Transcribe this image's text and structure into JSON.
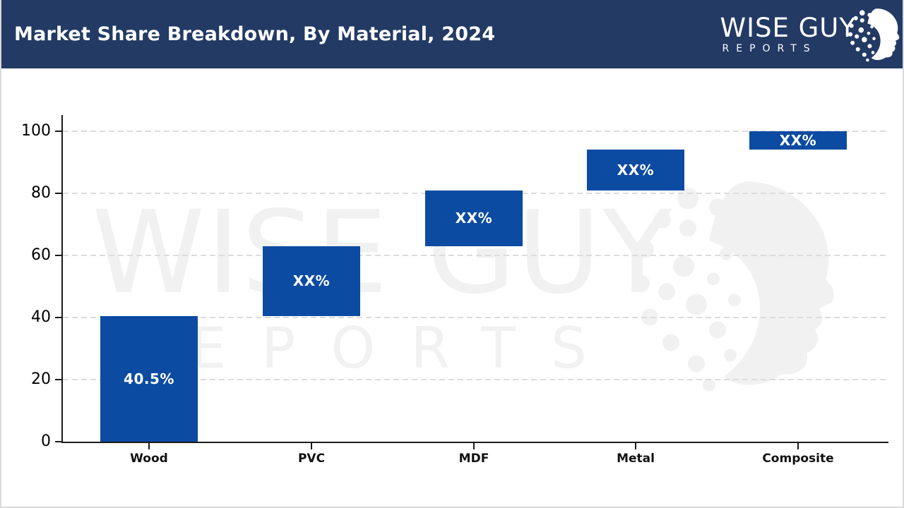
{
  "header": {
    "title": "Market Share Breakdown, By Material, 2024"
  },
  "brand": {
    "name": "WISE GUY",
    "subtitle": "REPORTS"
  },
  "colors": {
    "header_bg": "#223a64",
    "bar": "#0c4ba2",
    "bar_label": "#ffffff",
    "gridline": "#dcdcdc",
    "axis": "#1a1a1a",
    "watermark": "#f1f1f1"
  },
  "chart_data": {
    "type": "bar",
    "subtype": "waterfall",
    "title": "Market Share Breakdown, By Material, 2024",
    "xlabel": "",
    "ylabel": "",
    "categories": [
      "Wood",
      "PVC",
      "MDF",
      "Metal",
      "Composite"
    ],
    "segments": [
      {
        "category": "Wood",
        "start": 0,
        "end": 40.5,
        "label": "40.5%"
      },
      {
        "category": "PVC",
        "start": 40.5,
        "end": 63,
        "label": "XX%"
      },
      {
        "category": "MDF",
        "start": 63,
        "end": 81,
        "label": "XX%"
      },
      {
        "category": "Metal",
        "start": 81,
        "end": 94,
        "label": "XX%"
      },
      {
        "category": "Composite",
        "start": 94,
        "end": 100,
        "label": "XX%"
      }
    ],
    "ylim": [
      0,
      100
    ],
    "yticks": [
      0,
      20,
      40,
      60,
      80,
      100
    ],
    "grid": "horizontal-dashed",
    "legend": "none"
  }
}
